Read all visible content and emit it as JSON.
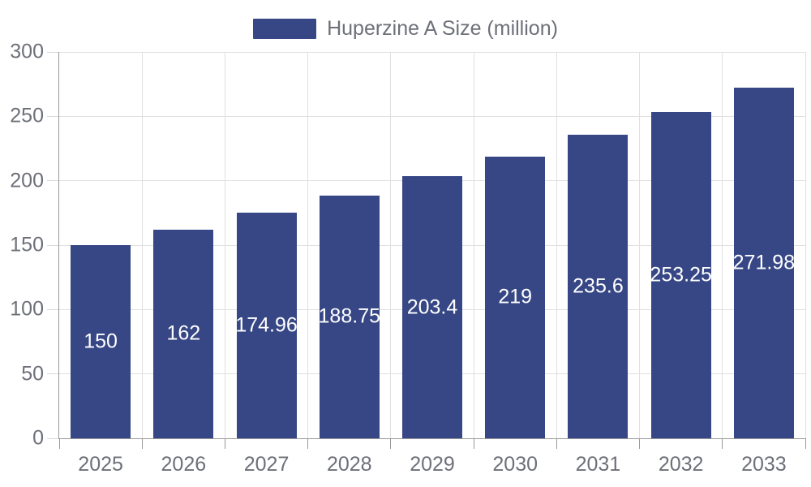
{
  "chart_data": {
    "type": "bar",
    "title": "",
    "legend": "Huperzine A Size (million)",
    "legend_position": "top",
    "categories": [
      "2025",
      "2026",
      "2027",
      "2028",
      "2029",
      "2030",
      "2031",
      "2032",
      "2033"
    ],
    "values": [
      150,
      162,
      174.96,
      188.75,
      203.4,
      219,
      235.6,
      253.25,
      271.98
    ],
    "value_labels": [
      "150",
      "162",
      "174.96",
      "188.75",
      "203.4",
      "219",
      "235.6",
      "253.25",
      "271.98"
    ],
    "xlabel": "",
    "ylabel": "",
    "ylim": [
      0,
      300
    ],
    "yticks": [
      0,
      50,
      100,
      150,
      200,
      250,
      300
    ],
    "grid": true,
    "colors": {
      "bar": "#374785",
      "grid": "#e0e0e0",
      "axis": "#999999",
      "tick_label": "#6E7079",
      "legend_text": "#6E7079",
      "value_label": "#ffffff",
      "background": "#ffffff"
    }
  }
}
